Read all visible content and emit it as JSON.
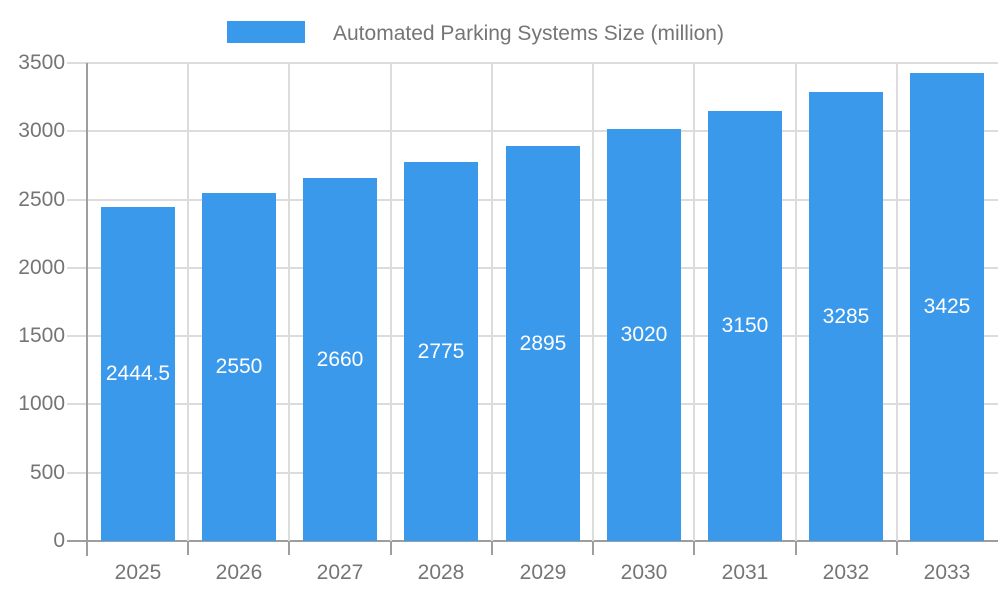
{
  "chart_data": {
    "type": "bar",
    "title": "Automated Parking Systems Size (million)",
    "legend": {
      "position": "top-center",
      "label": "Automated Parking Systems Size (million)"
    },
    "categories": [
      "2025",
      "2026",
      "2027",
      "2028",
      "2029",
      "2030",
      "2031",
      "2032",
      "2033"
    ],
    "series": [
      {
        "name": "Automated Parking Systems Size (million)",
        "values": [
          2444.5,
          2550,
          2660,
          2775,
          2895,
          3020,
          3150,
          3285,
          3425
        ]
      }
    ],
    "value_labels": [
      "2444.5",
      "2550",
      "2660",
      "2775",
      "2895",
      "3020",
      "3150",
      "3285",
      "3425"
    ],
    "xlabel": "",
    "ylabel": "",
    "ylim": [
      0,
      3500
    ],
    "ytick_interval": 500,
    "ytick_labels": [
      "0",
      "500",
      "1000",
      "1500",
      "2000",
      "2500",
      "3000",
      "3500"
    ],
    "grid": true,
    "colors": {
      "bar": "#3B99EC",
      "value_label": "#FFFFFF",
      "axis": "#9E9E9E",
      "gridline": "#DCDCDC",
      "text": "#757575"
    }
  }
}
